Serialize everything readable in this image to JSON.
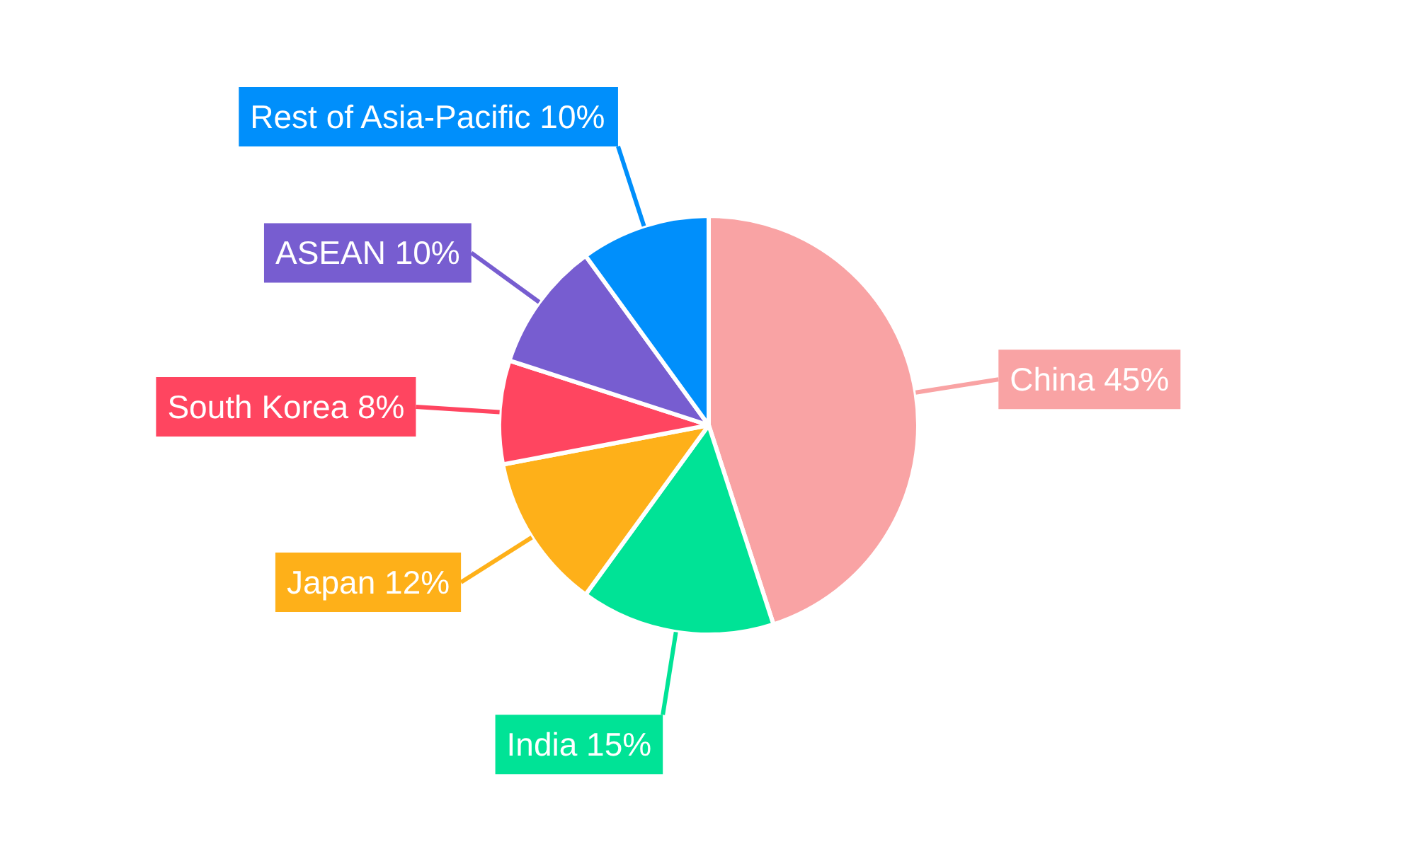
{
  "chart_data": {
    "type": "pie",
    "categories": [
      "China",
      "India",
      "Japan",
      "South Korea",
      "ASEAN",
      "Rest of Asia-Pacific"
    ],
    "values": [
      45,
      15,
      12,
      8,
      10,
      10
    ],
    "colors": [
      "#f9a3a4",
      "#00e396",
      "#feb019",
      "#ff4560",
      "#775dd0",
      "#008ffb"
    ],
    "value_labels": [
      "45%",
      "15%",
      "12%",
      "8%",
      "10%",
      "10%"
    ]
  }
}
